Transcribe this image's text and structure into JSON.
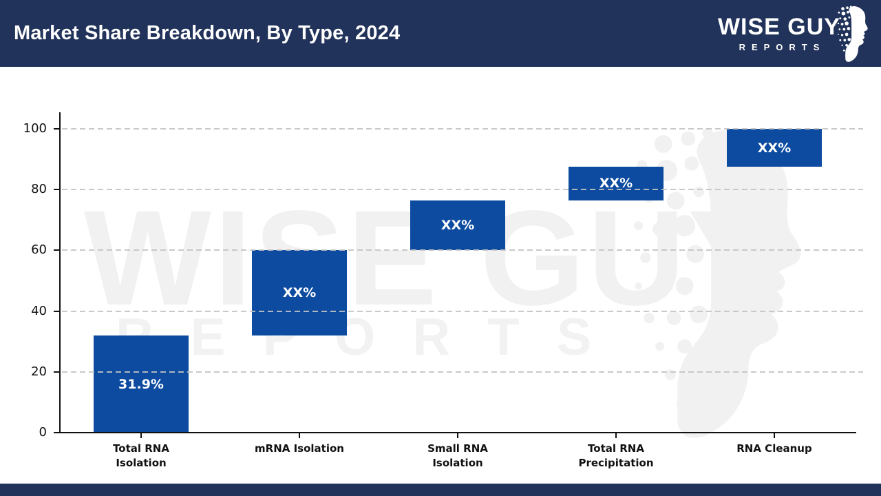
{
  "header": {
    "title": "Market Share Breakdown, By Type, 2024",
    "logo": {
      "name": "WISE GUY",
      "sub": "REPORTS"
    }
  },
  "watermark": {
    "name": "WISE GUY",
    "sub": "REPORTS"
  },
  "chart_data": {
    "type": "bar",
    "subtype": "waterfall",
    "title": "Market Share Breakdown, By Type, 2024",
    "categories": [
      "Total RNA\nIsolation",
      "mRNA Isolation",
      "Small RNA\nIsolation",
      "Total RNA\nPrecipitation",
      "RNA Cleanup"
    ],
    "segments": [
      {
        "category": "Total RNA Isolation",
        "start": 0,
        "end": 31.9,
        "label": "31.9%"
      },
      {
        "category": "mRNA Isolation",
        "start": 31.9,
        "end": 60,
        "label": "XX%"
      },
      {
        "category": "Small RNA Isolation",
        "start": 60,
        "end": 76.5,
        "label": "XX%"
      },
      {
        "category": "Total RNA Precipitation",
        "start": 76.5,
        "end": 87.5,
        "label": "XX%"
      },
      {
        "category": "RNA Cleanup",
        "start": 87.5,
        "end": 100,
        "label": "XX%"
      }
    ],
    "xlabel": "",
    "ylabel": "",
    "ylim": [
      0,
      100
    ],
    "yticks": [
      0,
      20,
      40,
      60,
      80,
      100
    ],
    "grid": "horizontal-dashed",
    "legend": "none",
    "bar_color": "#0c4ba0",
    "bar_label_color": "#ffffff"
  },
  "colors": {
    "header_bg": "#21335a",
    "footer_bg": "#21335a",
    "bar": "#0c4ba0",
    "grid": "#c3c3c3",
    "watermark": "#f1f1f1"
  }
}
